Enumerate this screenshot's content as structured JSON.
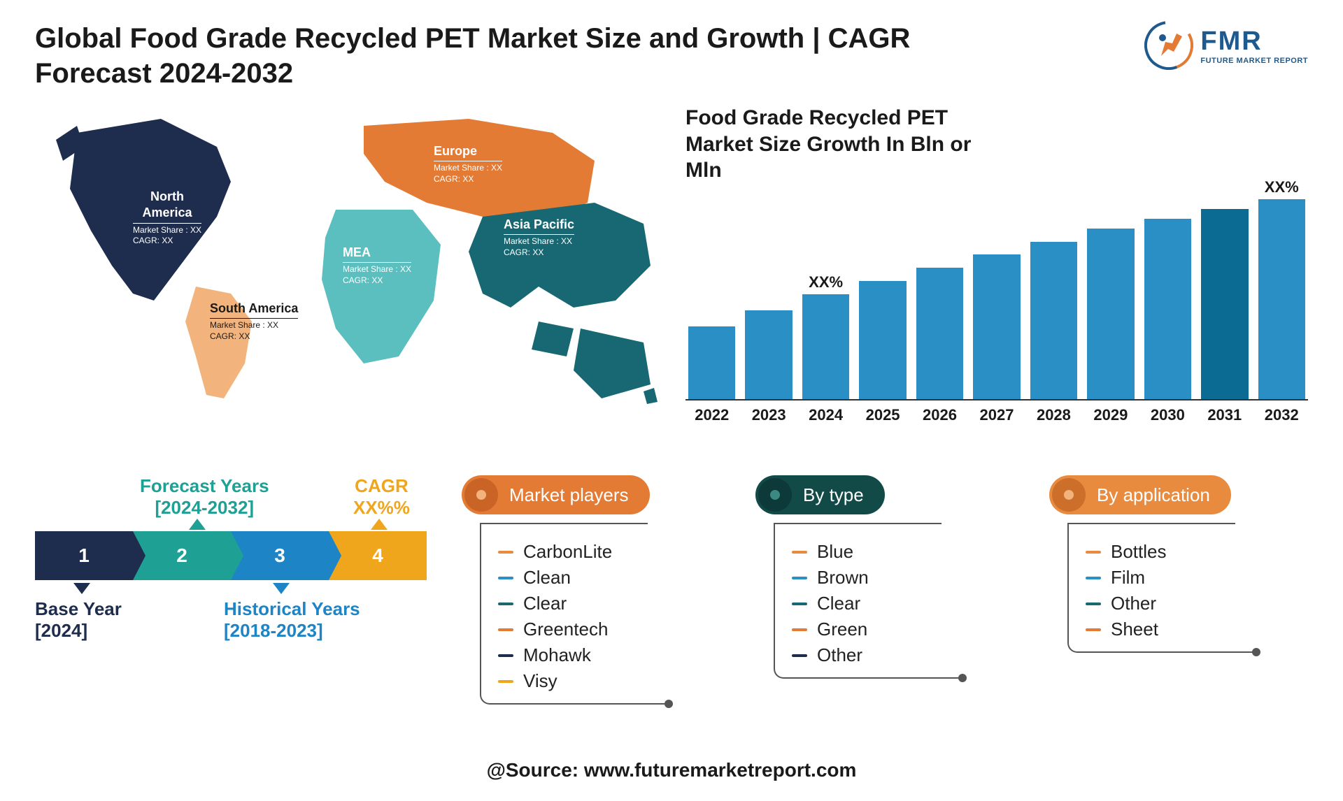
{
  "title": "Global Food Grade Recycled PET Market Size and Growth | CAGR Forecast 2024-2032",
  "logo": {
    "fmr": "FMR",
    "sub": "FUTURE MARKET REPORT"
  },
  "map": {
    "regions": {
      "north_america": {
        "name": "North\nAmerica",
        "share": "Market Share : XX",
        "cagr": "CAGR: XX",
        "color": "#1e2d4d"
      },
      "south_america": {
        "name": "South America",
        "share": "Market Share : XX",
        "cagr": "CAGR: XX",
        "color": "#f2b47c"
      },
      "europe": {
        "name": "Europe",
        "share": "Market Share : XX",
        "cagr": "CAGR: XX",
        "color": "#e37b35"
      },
      "mea": {
        "name": "MEA",
        "share": "Market Share : XX",
        "cagr": "CAGR: XX",
        "color": "#5cbfbf"
      },
      "asia_pacific": {
        "name": "Asia Pacific",
        "share": "Market Share : XX",
        "cagr": "CAGR: XX",
        "color": "#176872"
      }
    }
  },
  "chart": {
    "title": "Food Grade Recycled PET Market Size Growth In Bln or Mln",
    "type": "bar",
    "categories": [
      "2022",
      "2023",
      "2024",
      "2025",
      "2026",
      "2027",
      "2028",
      "2029",
      "2030",
      "2031",
      "2032"
    ],
    "values": [
      110,
      135,
      160,
      180,
      200,
      220,
      240,
      260,
      275,
      290,
      305
    ],
    "colors": [
      "#2a8fc4",
      "#2a8fc4",
      "#2a8fc4",
      "#2a8fc4",
      "#2a8fc4",
      "#2a8fc4",
      "#2a8fc4",
      "#2a8fc4",
      "#2a8fc4",
      "#0b6b93",
      "#2a8fc4"
    ],
    "y_max": 320,
    "annotations": [
      {
        "idx": 2,
        "label": "XX%"
      },
      {
        "idx": 10,
        "label": "XX%"
      }
    ],
    "label_fontsize": 22,
    "background_color": "#ffffff"
  },
  "timeline": {
    "forecast": {
      "label": "Forecast Years",
      "range": "[2024-2032]",
      "color": "#1fa095"
    },
    "cagr": {
      "label": "CAGR",
      "value": "XX%%",
      "color": "#efa61d"
    },
    "base": {
      "label": "Base Year",
      "range": "[2024]",
      "color": "#1e2d4d"
    },
    "historical": {
      "label": "Historical Years",
      "range": "[2018-2023]",
      "color": "#1d84c6"
    },
    "steps": [
      "1",
      "2",
      "3",
      "4"
    ]
  },
  "pills": {
    "market_players": {
      "label": "Market players",
      "items": [
        {
          "text": "CarbonLite",
          "tick": "#e88b3e"
        },
        {
          "text": "Clean",
          "tick": "#2a8fc4"
        },
        {
          "text": "Clear",
          "tick": "#176872"
        },
        {
          "text": "Greentech",
          "tick": "#e37b35"
        },
        {
          "text": "Mohawk",
          "tick": "#1e2d4d"
        },
        {
          "text": "Visy",
          "tick": "#efa61d"
        }
      ]
    },
    "by_type": {
      "label": "By type",
      "items": [
        {
          "text": "Blue",
          "tick": "#e88b3e"
        },
        {
          "text": "Brown",
          "tick": "#2a8fc4"
        },
        {
          "text": "Clear",
          "tick": "#176872"
        },
        {
          "text": "Green",
          "tick": "#e37b35"
        },
        {
          "text": "Other",
          "tick": "#1e2d4d"
        }
      ]
    },
    "by_application": {
      "label": "By application",
      "items": [
        {
          "text": "Bottles",
          "tick": "#e88b3e"
        },
        {
          "text": "Film",
          "tick": "#2a8fc4"
        },
        {
          "text": "Other",
          "tick": "#176872"
        },
        {
          "text": "Sheet",
          "tick": "#e37b35"
        }
      ]
    }
  },
  "source": "@Source: www.futuremarketreport.com"
}
